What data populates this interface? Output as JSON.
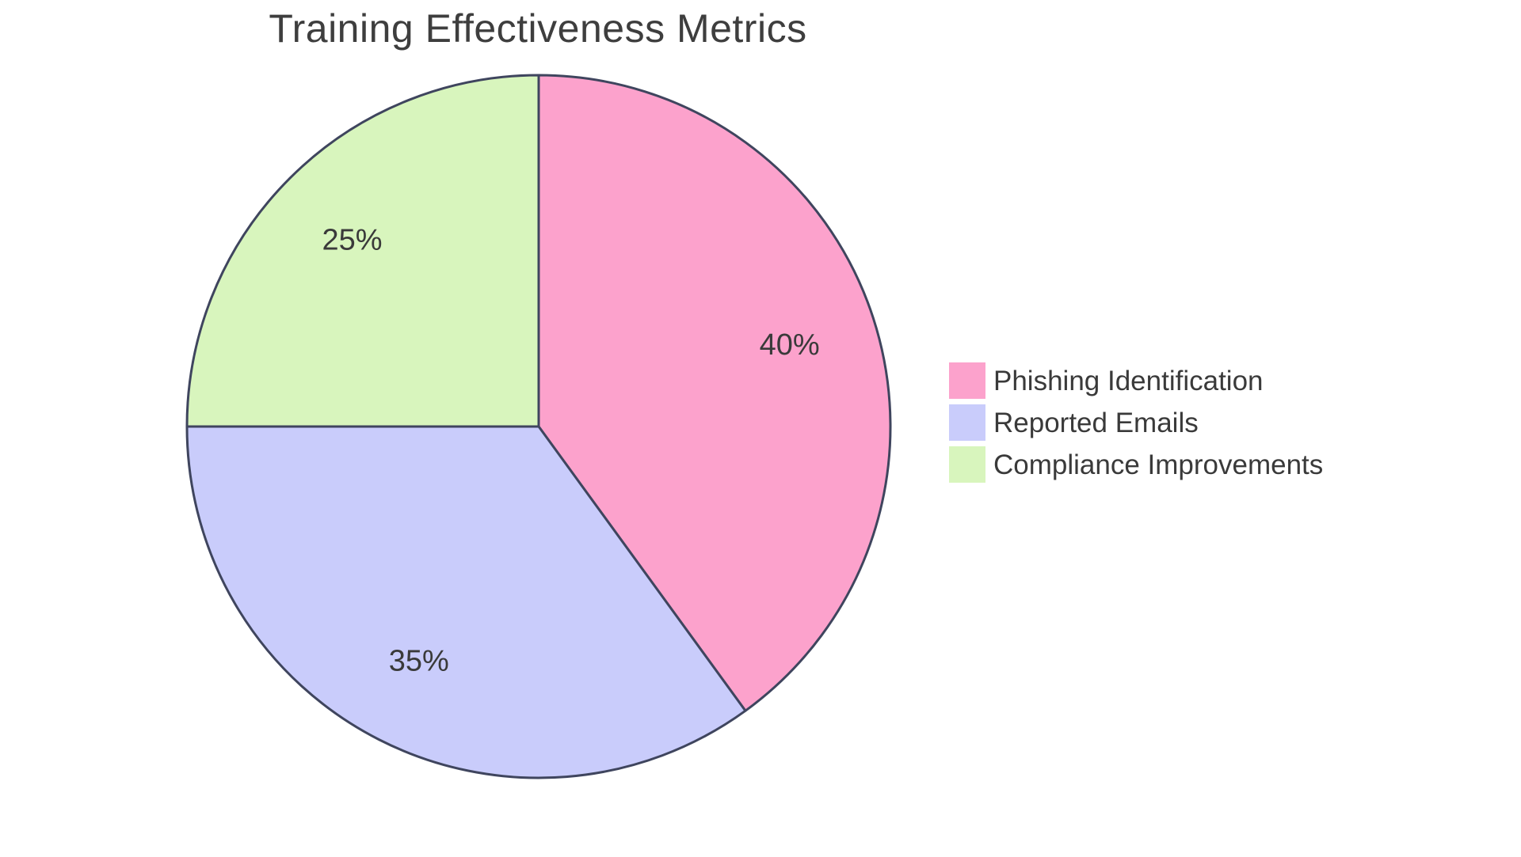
{
  "page": {
    "background_color": "#FFFFFF"
  },
  "chart_data": {
    "type": "pie",
    "title": "Training Effectiveness Metrics",
    "categories": [
      "Phishing Identification",
      "Reported Emails",
      "Compliance Improvements"
    ],
    "values": [
      40,
      35,
      25
    ],
    "percent_labels": [
      "40%",
      "35%",
      "25%"
    ],
    "colors": [
      "#FCA2CC",
      "#C9CCFB",
      "#D8F5BD"
    ],
    "edge_color": "#3F455E",
    "edge_width": 3,
    "title_color": "#3E3E3E",
    "label_color": "#3A3A3A",
    "start_at": "top",
    "direction": "clockwise",
    "label_distance_ratio": 0.75,
    "legend_position": "right",
    "grid": false
  }
}
